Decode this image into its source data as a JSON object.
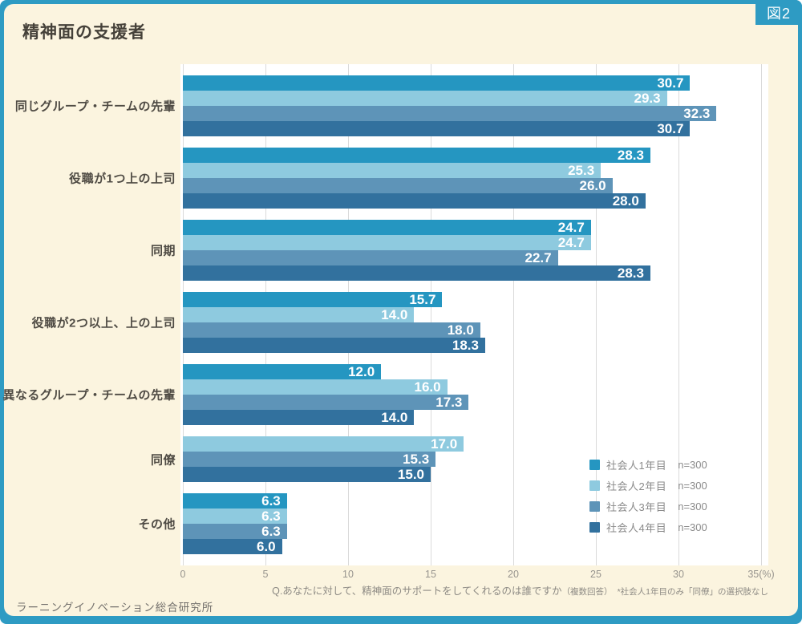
{
  "figure_label": "図2",
  "title": "精神面の支援者",
  "footer": "ラーニングイノベーション総合研究所",
  "note": {
    "question": "Q.あなたに対して、精神面のサポートをしてくれるのは誰ですか",
    "question_suffix": "（複数回答）",
    "asterisk": "*社会人1年目のみ「同僚」の選択肢なし"
  },
  "legend": {
    "items": [
      {
        "label": "社会人1年目",
        "n": "n=300",
        "color": "#2596c1"
      },
      {
        "label": "社会人2年目",
        "n": "n=300",
        "color": "#8ecadf"
      },
      {
        "label": "社会人3年目",
        "n": "n=300",
        "color": "#5e94b8"
      },
      {
        "label": "社会人4年目",
        "n": "n=300",
        "color": "#32719e"
      }
    ]
  },
  "colors": {
    "frame": "#2e9bc3",
    "card_bg": "#fbf4df",
    "plot_bg": "#ffffff",
    "grid": "#dadada",
    "value_text": "#ffffff"
  },
  "chart_data": {
    "type": "bar",
    "orientation": "horizontal",
    "title": "精神面の支援者",
    "categories": [
      "同じグループ・チームの先輩",
      "役職が1つ上の上司",
      "同期",
      "役職が2つ以上、上の上司",
      "異なるグループ・チームの先輩",
      "同僚",
      "その他"
    ],
    "series": [
      {
        "name": "社会人1年目",
        "n": "n=300",
        "color": "#2596c1",
        "values": [
          30.7,
          28.3,
          24.7,
          15.7,
          12.0,
          null,
          6.3
        ]
      },
      {
        "name": "社会人2年目",
        "n": "n=300",
        "color": "#8ecadf",
        "values": [
          29.3,
          25.3,
          24.7,
          14.0,
          16.0,
          17.0,
          6.3
        ]
      },
      {
        "name": "社会人3年目",
        "n": "n=300",
        "color": "#5e94b8",
        "values": [
          32.3,
          26.0,
          22.7,
          18.0,
          17.3,
          15.3,
          6.3
        ]
      },
      {
        "name": "社会人4年目",
        "n": "n=300",
        "color": "#32719e",
        "values": [
          30.7,
          28.0,
          28.3,
          18.3,
          14.0,
          15.0,
          6.0
        ]
      }
    ],
    "xlim": [
      0,
      35
    ],
    "xticks": [
      {
        "v": 0,
        "label": "0"
      },
      {
        "v": 5,
        "label": "5"
      },
      {
        "v": 10,
        "label": "10"
      },
      {
        "v": 15,
        "label": "15"
      },
      {
        "v": 20,
        "label": "20"
      },
      {
        "v": 25,
        "label": "25"
      },
      {
        "v": 30,
        "label": "30"
      },
      {
        "v": 35,
        "label": "35(%)"
      }
    ],
    "value_decimals": 1,
    "grid": true,
    "legend_position": "inside-lower-right"
  }
}
